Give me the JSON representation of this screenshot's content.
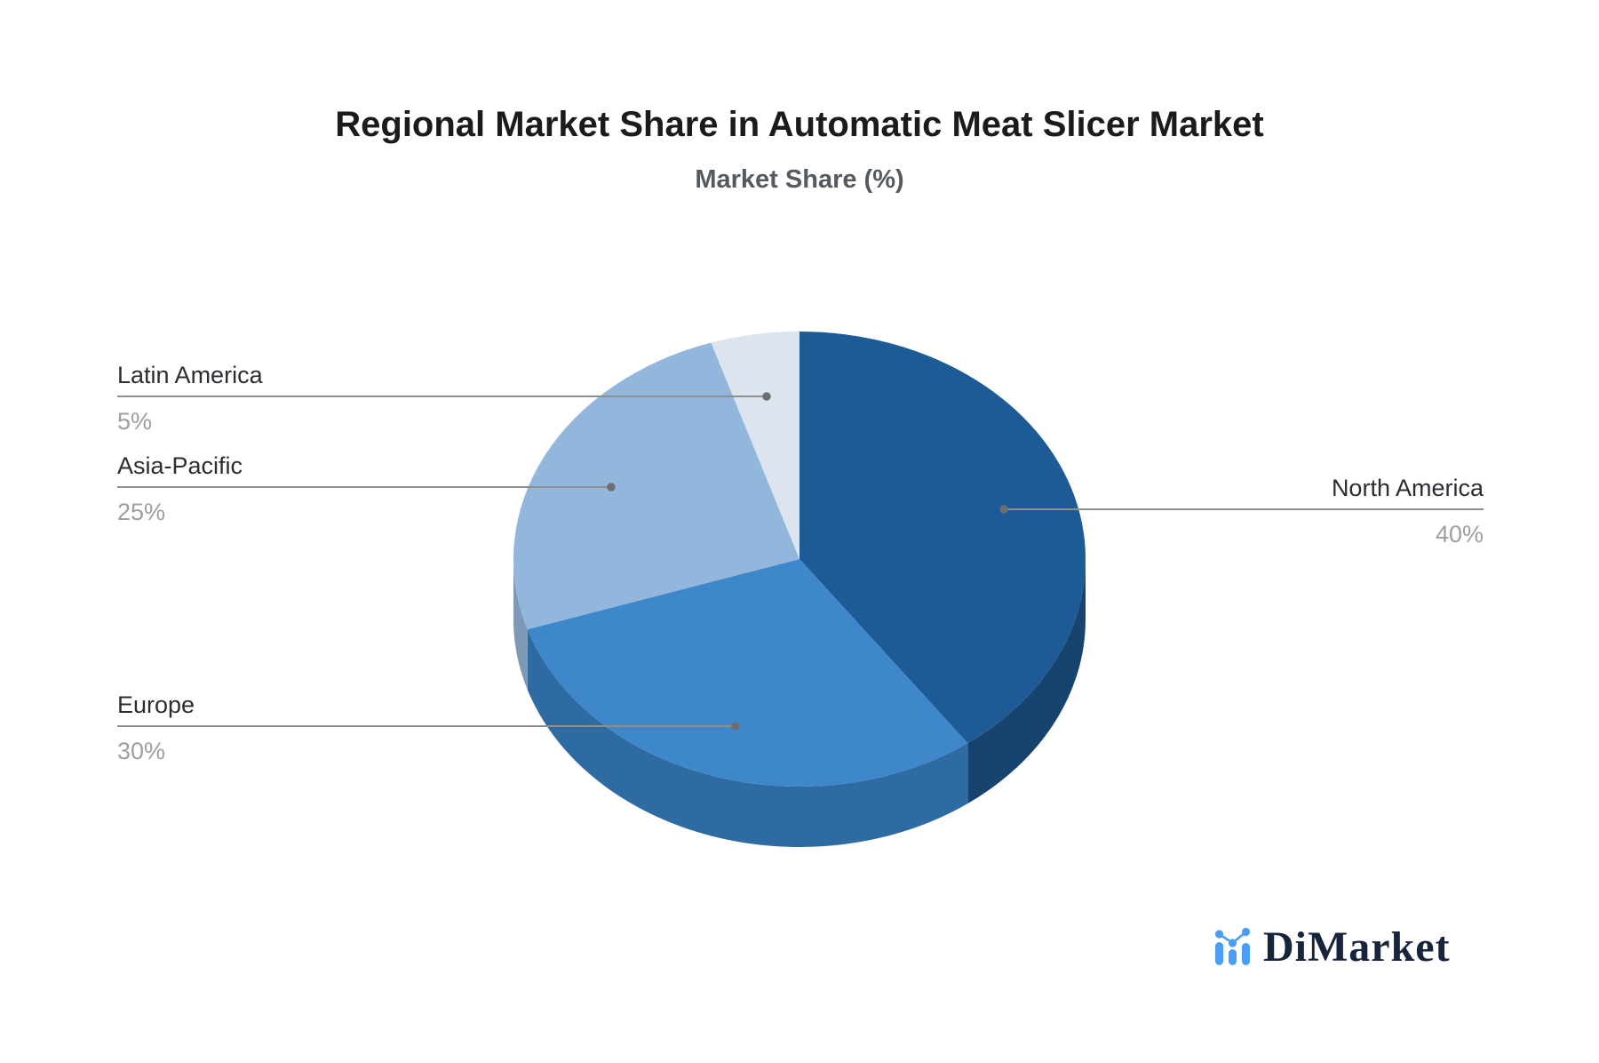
{
  "title": "Regional Market Share in Automatic Meat Slicer Market",
  "subtitle": "Market Share (%)",
  "brand": {
    "name": "DiMarket",
    "icon": "bar-chart-logo-icon",
    "text_color": "#16243c",
    "icon_color": "#4a9ef8"
  },
  "chart_data": {
    "type": "pie",
    "style": "3d",
    "title": "Regional Market Share in Automatic Meat Slicer Market",
    "subtitle": "Market Share (%)",
    "unit": "%",
    "start_angle": "12-oclock",
    "direction": "clockwise",
    "labels_layout": "callout-lines-with-dots",
    "leader_line_color": "#8f8f8f",
    "leader_dot_color": "#6e6e6e",
    "slices": [
      {
        "label": "North America",
        "value": 40,
        "pct_label": "40%",
        "color": "#1d5a96",
        "side_color": "#17446f"
      },
      {
        "label": "Europe",
        "value": 30,
        "pct_label": "30%",
        "color": "#3d87ca",
        "side_color": "#2f6ba3"
      },
      {
        "label": "Asia-Pacific",
        "value": 25,
        "pct_label": "25%",
        "color": "#93b6dc",
        "side_color": "#7d99b6"
      },
      {
        "label": "Latin America",
        "value": 5,
        "pct_label": "5%",
        "color": "#dce4ee",
        "side_color": "#b9c5d6"
      }
    ]
  }
}
